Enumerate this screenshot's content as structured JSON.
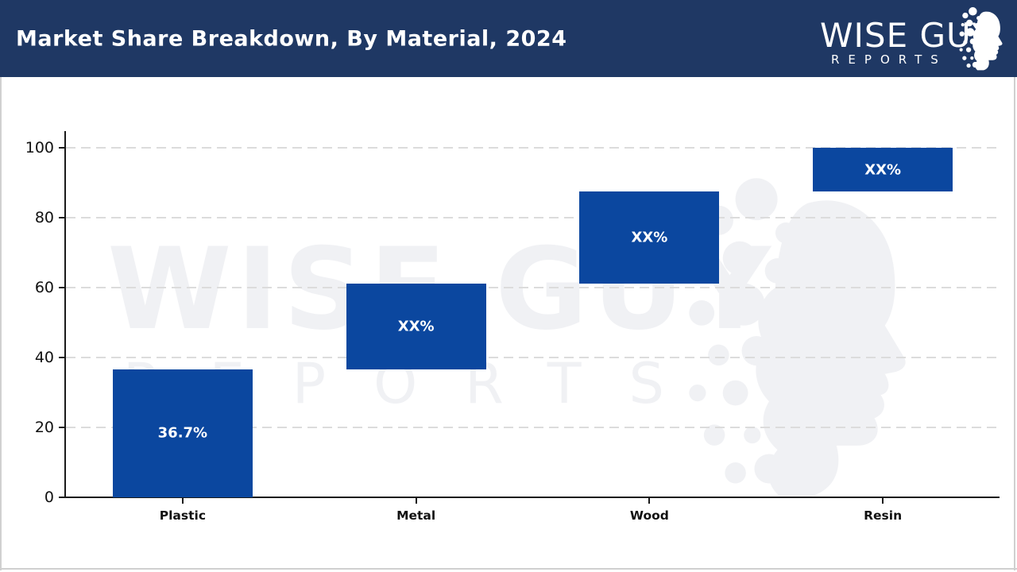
{
  "header": {
    "title": "Market Share Breakdown, By Material, 2024",
    "logo": {
      "line1": "WISE GUY",
      "line2": "REPORTS"
    }
  },
  "watermark": {
    "line1": "WISE GUY",
    "line2": "REPORTS"
  },
  "colors": {
    "header_bg": "#1f3864",
    "bar": "#0b479f",
    "grid": "#dcdcdc",
    "axis": "#1a1a1a",
    "watermark": "#f0f1f4",
    "bar_label": "#ffffff"
  },
  "chart_data": {
    "type": "bar",
    "subtype": "waterfall",
    "title": "Market Share Breakdown, By Material, 2024",
    "categories": [
      "Plastic",
      "Metal",
      "Wood",
      "Resin"
    ],
    "segments": [
      {
        "category": "Plastic",
        "start": 0,
        "end": 36.7,
        "label": "36.7%"
      },
      {
        "category": "Metal",
        "start": 36.7,
        "end": 61.1,
        "label": "XX%"
      },
      {
        "category": "Wood",
        "start": 61.1,
        "end": 87.5,
        "label": "XX%"
      },
      {
        "category": "Resin",
        "start": 87.5,
        "end": 100,
        "label": "XX%"
      }
    ],
    "ylim": [
      0,
      100
    ],
    "yticks": [
      0,
      20,
      40,
      60,
      80,
      100
    ],
    "xlabel": "",
    "ylabel": "",
    "grid": "dashed-horizontal",
    "legend": "none"
  }
}
